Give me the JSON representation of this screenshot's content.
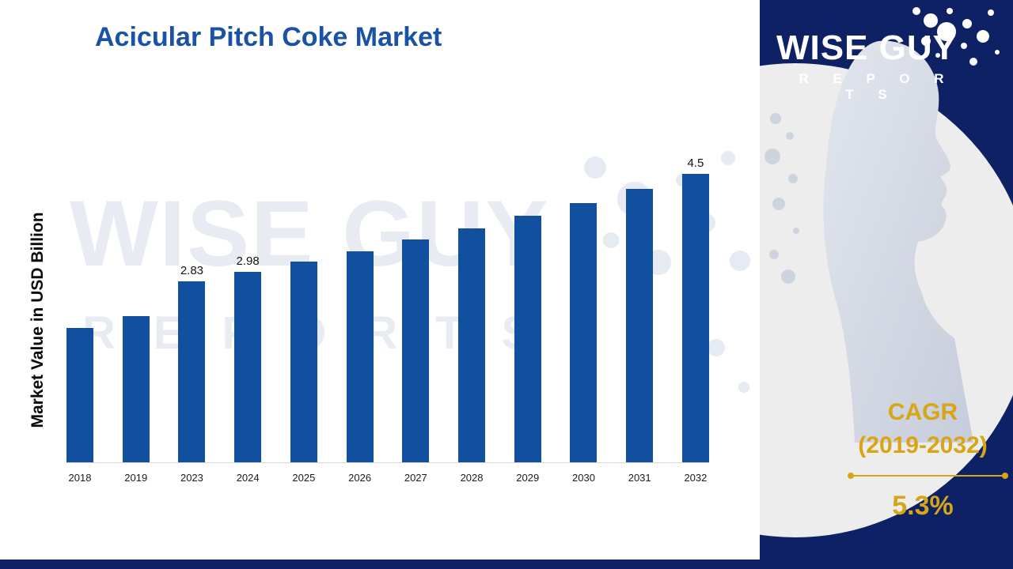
{
  "title": "Acicular Pitch Coke Market",
  "watermark": {
    "line1": "WISE GUY",
    "line2": "REPORTS"
  },
  "chart_data": {
    "type": "bar",
    "title": "Acicular Pitch Coke Market",
    "xlabel": "",
    "ylabel": "Market Value in USD Billion",
    "categories": [
      "2018",
      "2019",
      "2023",
      "2024",
      "2025",
      "2026",
      "2027",
      "2028",
      "2029",
      "2030",
      "2031",
      "2032"
    ],
    "values": [
      2.1,
      2.28,
      2.83,
      2.98,
      3.13,
      3.3,
      3.48,
      3.66,
      3.85,
      4.05,
      4.27,
      4.5
    ],
    "data_labels": [
      "",
      "",
      "2.83",
      "2.98",
      "",
      "",
      "",
      "",
      "",
      "",
      "",
      "4.5"
    ],
    "ylim": [
      0,
      5
    ],
    "grid": false,
    "legend": "none",
    "bar_color": "#11509E"
  },
  "brand": {
    "name": "WISE GUY",
    "reports": "R E P O R T S"
  },
  "cagr": {
    "label": "CAGR",
    "range": "(2019-2032)",
    "value": "5.3%"
  },
  "colors": {
    "title_blue": "#1A52A6",
    "bar_blue": "#11509E",
    "panel_navy": "#0E2164",
    "gold": "#D7A516",
    "watermark_gray": "#E8EBF2",
    "circle_gray": "#EDEDED"
  }
}
